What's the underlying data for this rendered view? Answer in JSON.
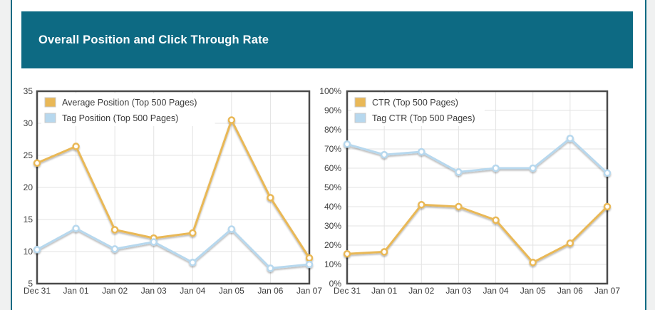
{
  "header": {
    "title": "Overall Position and Click Through Rate"
  },
  "colors": {
    "accent_teal": "#0d6a83",
    "series_orange": "#e9b857",
    "series_blue": "#b7d8ee",
    "grid": "#e3e3e3",
    "plot_border": "#4a4a4a",
    "axis_text": "#3d3d3d",
    "legend_text": "#3a3a3a",
    "swatch_border": "#c9c9c9",
    "card_bg": "#ffffff",
    "page_bg": "#f0f1f1"
  },
  "chart_data": [
    {
      "type": "line",
      "title": "Average Position chart",
      "x": [
        "Dec 31",
        "Jan 01",
        "Jan 02",
        "Jan 03",
        "Jan 04",
        "Jan 05",
        "Jan 06",
        "Jan 07"
      ],
      "xlabel": "",
      "ylabel": "",
      "ylim": [
        5,
        35
      ],
      "ytick_step": 5,
      "y_suffix": "",
      "grid": true,
      "legend_position": "top-left",
      "series": [
        {
          "name": "Average Position (Top 500 Pages)",
          "color": "#e9b857",
          "values": [
            23.8,
            26.4,
            13.4,
            12.1,
            12.9,
            30.5,
            18.4,
            9.0
          ]
        },
        {
          "name": "Tag Position (Top 500 Pages)",
          "color": "#b7d8ee",
          "values": [
            10.3,
            13.6,
            10.4,
            11.5,
            8.3,
            13.5,
            7.4,
            8.0
          ]
        }
      ]
    },
    {
      "type": "line",
      "title": "Click Through Rate chart",
      "x": [
        "Dec 31",
        "Jan 01",
        "Jan 02",
        "Jan 03",
        "Jan 04",
        "Jan 05",
        "Jan 06",
        "Jan 07"
      ],
      "xlabel": "",
      "ylabel": "",
      "ylim": [
        0,
        100
      ],
      "ytick_step": 10,
      "y_suffix": "%",
      "grid": true,
      "legend_position": "top-left",
      "series": [
        {
          "name": "CTR (Top 500 Pages)",
          "color": "#e9b857",
          "values": [
            15.5,
            16.5,
            41,
            40,
            33,
            11,
            21,
            40
          ]
        },
        {
          "name": "Tag CTR (Top 500 Pages)",
          "color": "#b7d8ee",
          "values": [
            72.5,
            67,
            68.5,
            58,
            60,
            60,
            75.5,
            57.5
          ]
        }
      ]
    }
  ]
}
